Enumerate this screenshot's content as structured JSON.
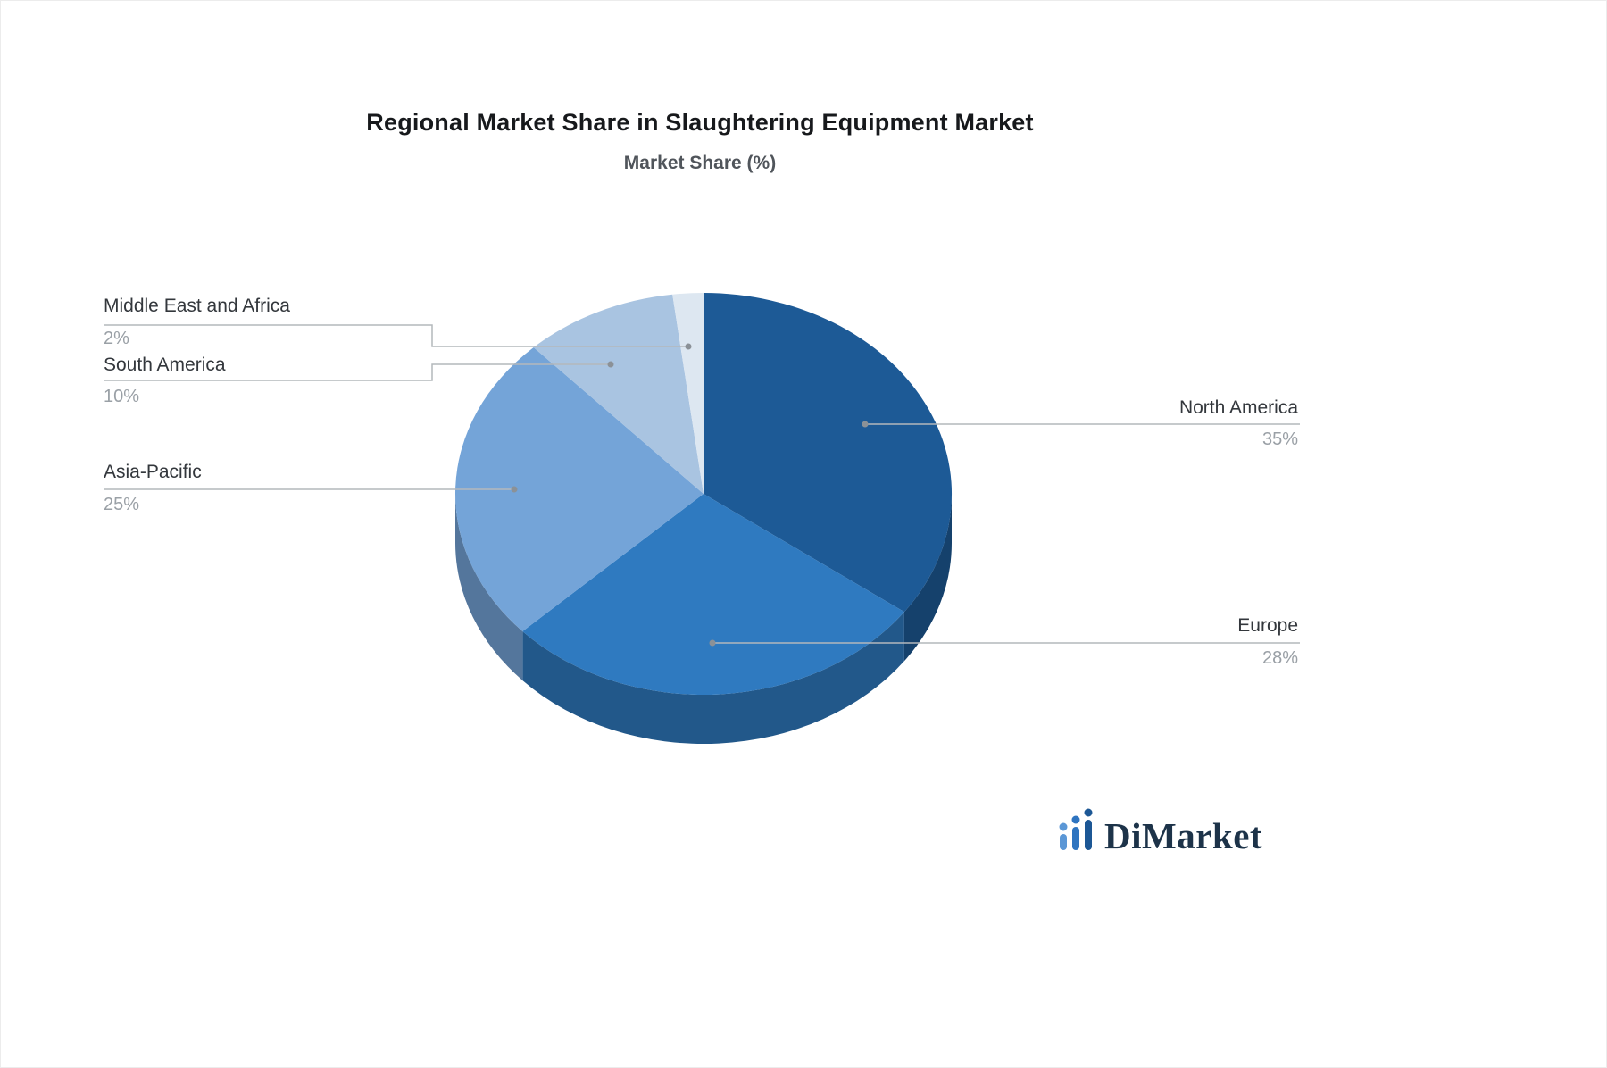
{
  "logo": {
    "text": "DiMarket"
  },
  "chart_data": {
    "type": "pie",
    "title": "Regional Market Share in Slaughtering Equipment Market",
    "subtitle": "Market Share (%)",
    "unit": "%",
    "total": 100,
    "effect": "3d",
    "direction": "clockwise",
    "start_angle_deg": 0,
    "labels_position": "outside",
    "points": [
      {
        "name": "North America",
        "value": 35,
        "label": "35%",
        "color": "#1d5a96"
      },
      {
        "name": "Europe",
        "value": 28,
        "label": "28%",
        "color": "#2f7ac0"
      },
      {
        "name": "Asia-Pacific",
        "value": 25,
        "label": "25%",
        "color": "#74a4d8"
      },
      {
        "name": "South America",
        "value": 10,
        "label": "10%",
        "color": "#a9c4e1"
      },
      {
        "name": "Middle East and Africa",
        "value": 2,
        "label": "2%",
        "color": "#dde7f1"
      }
    ]
  }
}
